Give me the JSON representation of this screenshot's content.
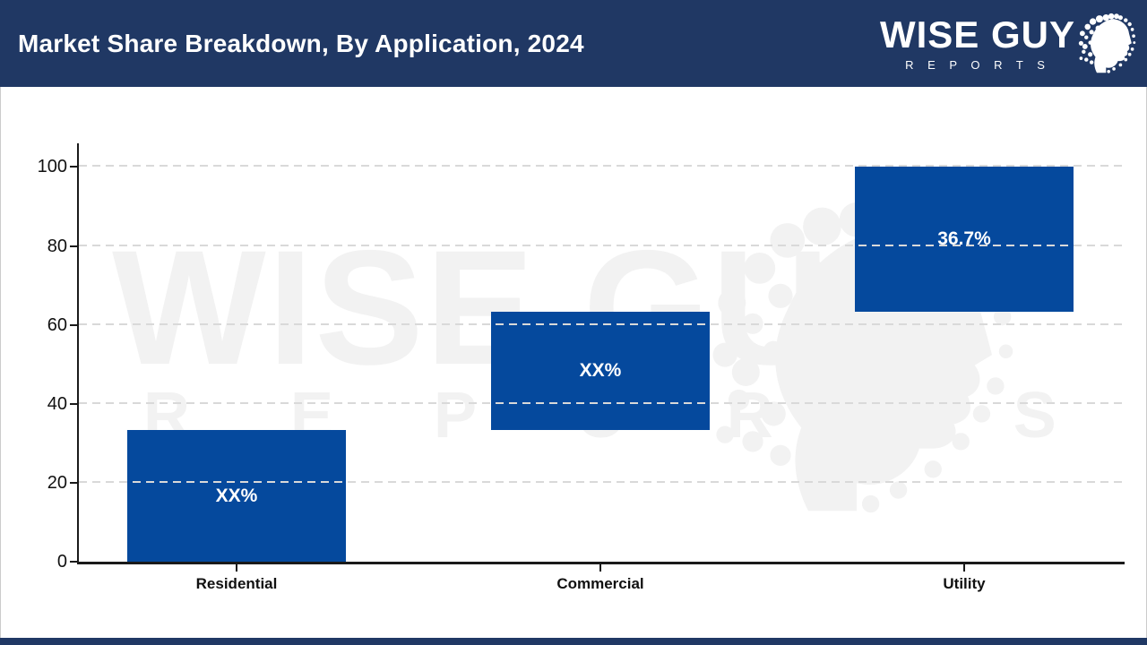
{
  "header": {
    "title": "Market Share Breakdown, By Application, 2024",
    "logo_name": "WISE GUY",
    "logo_tagline": "R E P O R T S"
  },
  "watermark": {
    "name": "WISE GUY",
    "tagline": "R E P O R T S"
  },
  "colors": {
    "header_bg": "#203864",
    "footer_bg": "#203864",
    "bar_fill": "#05499d",
    "grid_line": "#d9d9d9",
    "axis_text": "#111111",
    "bar_label_text": "#ffffff",
    "watermark": "#f2f2f2"
  },
  "chart_data": {
    "type": "bar",
    "subtype": "waterfall",
    "title": "Market Share Breakdown, By Application, 2024",
    "categories": [
      "Residential",
      "Commercial",
      "Utility"
    ],
    "bars": [
      {
        "category": "Residential",
        "start": 0,
        "end": 33.3,
        "label": "XX%"
      },
      {
        "category": "Commercial",
        "start": 33.3,
        "end": 63.3,
        "label": "XX%"
      },
      {
        "category": "Utility",
        "start": 63.3,
        "end": 100,
        "label": "36.7%"
      }
    ],
    "yticks": [
      0,
      20,
      40,
      60,
      80,
      100
    ],
    "ylim": [
      0,
      106
    ],
    "xlabel": "",
    "ylabel": "",
    "grid": "horizontal-dashed",
    "gridlines_above_bars": true,
    "legend": "none"
  }
}
